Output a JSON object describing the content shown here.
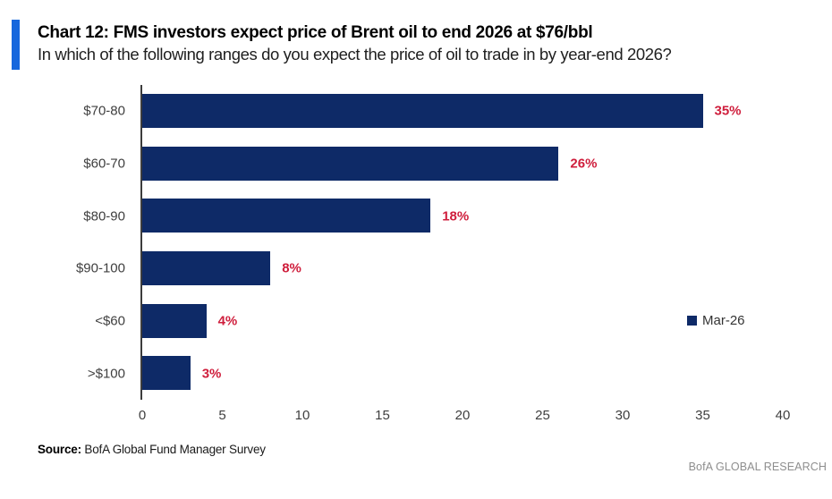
{
  "header": {
    "title": "Chart 12: FMS investors expect price of Brent oil to end 2026 at $76/bbl",
    "subtitle": "In which of the following ranges do you expect the price of oil to trade in by year-end 2026?"
  },
  "chart_data": {
    "type": "bar",
    "orientation": "horizontal",
    "categories": [
      "$70-80",
      "$60-70",
      "$80-90",
      "$90-100",
      "<$60",
      ">$100"
    ],
    "series": [
      {
        "name": "Mar-26",
        "values": [
          35,
          26,
          18,
          8,
          4,
          3
        ]
      }
    ],
    "value_labels": [
      "35%",
      "26%",
      "18%",
      "8%",
      "4%",
      "3%"
    ],
    "xlim": [
      0,
      40
    ],
    "x_ticks": [
      0,
      5,
      10,
      15,
      20,
      25,
      30,
      35,
      40
    ],
    "grid": false,
    "legend": {
      "label": "Mar-26",
      "position": "right-middle"
    },
    "colors": {
      "bar": "#0e2a67",
      "value_label": "#cf1e3c",
      "axis_line": "#3c3c3c",
      "tick_text": "#3f3f3f",
      "accent": "#1667dd"
    }
  },
  "footer": {
    "source_label": "Source:",
    "source_text": " BofA Global Fund Manager Survey",
    "brand": "BofA GLOBAL RESEARCH"
  }
}
